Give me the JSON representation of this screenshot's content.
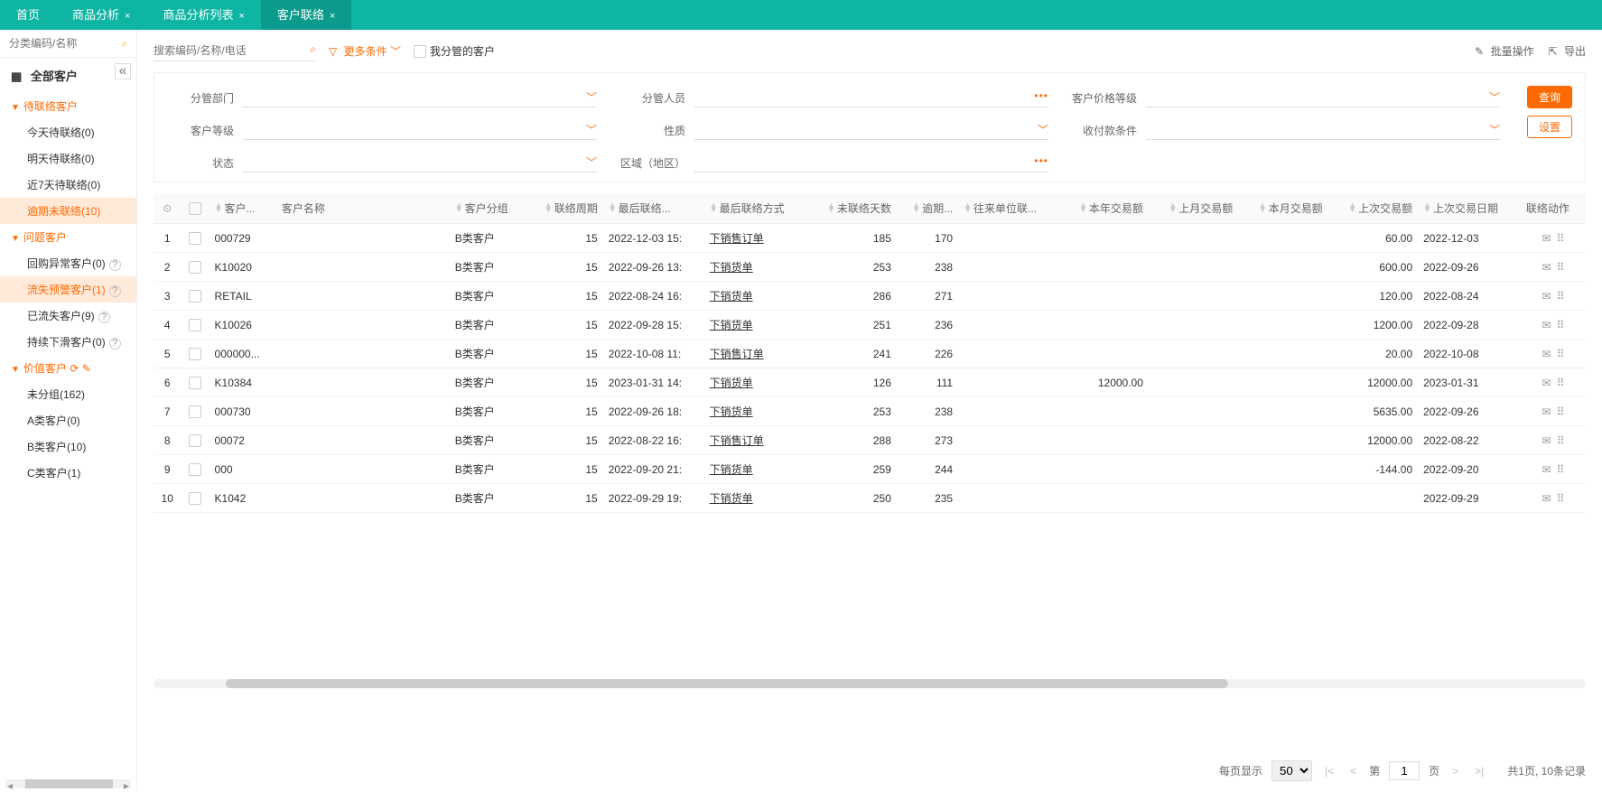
{
  "colors": {
    "primary": "#0EB5A3",
    "accent": "#ff6a00",
    "highlight_bg": "#ffe9d9"
  },
  "tabs": [
    {
      "label": "首页",
      "closable": false,
      "active": false
    },
    {
      "label": "商品分析",
      "closable": true,
      "active": false
    },
    {
      "label": "商品分析列表",
      "closable": true,
      "active": false
    },
    {
      "label": "客户联络",
      "closable": true,
      "active": true
    }
  ],
  "sidebar": {
    "search_placeholder": "分类编码/名称",
    "all_label": "全部客户",
    "groups": [
      {
        "label": "待联络客户",
        "items": [
          {
            "label": "今天待联络(0)",
            "active": false
          },
          {
            "label": "明天待联络(0)",
            "active": false
          },
          {
            "label": "近7天待联络(0)",
            "active": false
          },
          {
            "label": "逾期未联络(10)",
            "active": true
          }
        ]
      },
      {
        "label": "问题客户",
        "items": [
          {
            "label": "回购异常客户(0)",
            "help": true,
            "active": false
          },
          {
            "label": "流失预警客户(1)",
            "help": true,
            "active": true
          },
          {
            "label": "已流失客户(9)",
            "help": true,
            "active": false
          },
          {
            "label": "持续下滑客户(0)",
            "help": true,
            "active": false
          }
        ]
      },
      {
        "label": "价值客户",
        "icons": true,
        "items": [
          {
            "label": "未分组(162)",
            "active": false
          },
          {
            "label": "A类客户(0)",
            "active": false
          },
          {
            "label": "B类客户(10)",
            "active": false
          },
          {
            "label": "C类客户(1)",
            "active": false
          }
        ]
      }
    ]
  },
  "toolbar": {
    "search_placeholder": "搜索编码/名称/电话",
    "more_conditions": "更多条件",
    "my_customers": "我分管的客户",
    "batch_ops": "批量操作",
    "export": "导出"
  },
  "filters": {
    "row1": [
      {
        "label": "分管部门",
        "kind": "chev"
      },
      {
        "label": "分管人员",
        "kind": "dots"
      },
      {
        "label": "客户价格等级",
        "kind": "chev"
      }
    ],
    "row2": [
      {
        "label": "客户等级",
        "kind": "chev"
      },
      {
        "label": "性质",
        "kind": "chev"
      },
      {
        "label": "收付款条件",
        "kind": "chev"
      }
    ],
    "row3": [
      {
        "label": "状态",
        "kind": "chev"
      },
      {
        "label": "区域（地区）",
        "kind": "dots"
      }
    ],
    "btn_query": "查询",
    "btn_settings": "设置"
  },
  "table": {
    "columns": [
      "",
      "",
      "客户...",
      "客户名称",
      "客户分组",
      "联络周期",
      "最后联络...",
      "最后联络方式",
      "未联络天数",
      "逾期...",
      "往来单位联...",
      "本年交易额",
      "上月交易额",
      "本月交易额",
      "上次交易额",
      "上次交易日期",
      "联络动作"
    ],
    "rows": [
      {
        "n": 1,
        "code": "000729",
        "name": "",
        "grp": "B类客户",
        "cycle": 15,
        "last": "2022-12-03 15:",
        "way": "下销售订单",
        "days": 185,
        "over": 170,
        "rel": "",
        "year": "",
        "pm": "",
        "tm": "",
        "la": "60.00",
        "ld": "2022-12-03"
      },
      {
        "n": 2,
        "code": "K10020",
        "name": "",
        "grp": "B类客户",
        "cycle": 15,
        "last": "2022-09-26 13:",
        "way": "下销货单",
        "days": 253,
        "over": 238,
        "rel": "",
        "year": "",
        "pm": "",
        "tm": "",
        "la": "600.00",
        "ld": "2022-09-26"
      },
      {
        "n": 3,
        "code": "RETAIL",
        "name": "",
        "grp": "B类客户",
        "cycle": 15,
        "last": "2022-08-24 16:",
        "way": "下销货单",
        "days": 286,
        "over": 271,
        "rel": "",
        "year": "",
        "pm": "",
        "tm": "",
        "la": "120.00",
        "ld": "2022-08-24"
      },
      {
        "n": 4,
        "code": "K10026",
        "name": "",
        "grp": "B类客户",
        "cycle": 15,
        "last": "2022-09-28 15:",
        "way": "下销货单",
        "days": 251,
        "over": 236,
        "rel": "",
        "year": "",
        "pm": "",
        "tm": "",
        "la": "1200.00",
        "ld": "2022-09-28"
      },
      {
        "n": 5,
        "code": "000000...",
        "name": "",
        "grp": "B类客户",
        "cycle": 15,
        "last": "2022-10-08 11:",
        "way": "下销售订单",
        "days": 241,
        "over": 226,
        "rel": "",
        "year": "",
        "pm": "",
        "tm": "",
        "la": "20.00",
        "ld": "2022-10-08"
      },
      {
        "n": 6,
        "code": "K10384",
        "name": "",
        "grp": "B类客户",
        "cycle": 15,
        "last": "2023-01-31 14:",
        "way": "下销货单",
        "days": 126,
        "over": 111,
        "rel": "",
        "year": "12000.00",
        "pm": "",
        "tm": "",
        "la": "12000.00",
        "ld": "2023-01-31"
      },
      {
        "n": 7,
        "code": "000730",
        "name": "",
        "grp": "B类客户",
        "cycle": 15,
        "last": "2022-09-26 18:",
        "way": "下销货单",
        "days": 253,
        "over": 238,
        "rel": "",
        "year": "",
        "pm": "",
        "tm": "",
        "la": "5635.00",
        "ld": "2022-09-26"
      },
      {
        "n": 8,
        "code": "00072",
        "name": "",
        "grp": "B类客户",
        "cycle": 15,
        "last": "2022-08-22 16:",
        "way": "下销售订单",
        "days": 288,
        "over": 273,
        "rel": "",
        "year": "",
        "pm": "",
        "tm": "",
        "la": "12000.00",
        "ld": "2022-08-22"
      },
      {
        "n": 9,
        "code": "000",
        "name": "",
        "grp": "B类客户",
        "cycle": 15,
        "last": "2022-09-20 21:",
        "way": "下销货单",
        "days": 259,
        "over": 244,
        "rel": "",
        "year": "",
        "pm": "",
        "tm": "",
        "la": "-144.00",
        "ld": "2022-09-20"
      },
      {
        "n": 10,
        "code": "K1042",
        "name": "",
        "grp": "B类客户",
        "cycle": 15,
        "last": "2022-09-29 19:",
        "way": "下销货单",
        "days": 250,
        "over": 235,
        "rel": "",
        "year": "",
        "pm": "",
        "tm": "",
        "la": "",
        "ld": "2022-09-29"
      }
    ]
  },
  "footer": {
    "per_page_label": "每页显示",
    "per_page_value": "50",
    "page_label_prefix": "第",
    "page_value": "1",
    "page_label_suffix": "页",
    "summary": "共1页, 10条记录"
  }
}
